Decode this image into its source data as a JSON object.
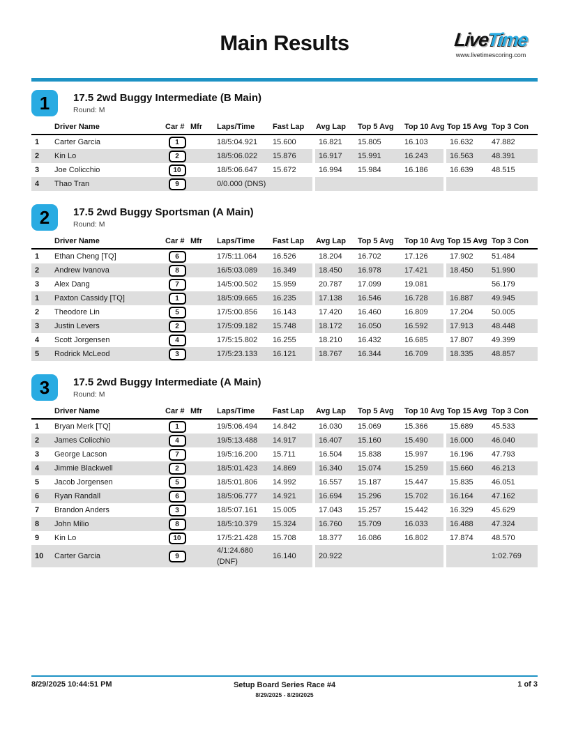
{
  "header": {
    "title": "Main Results",
    "logo": {
      "live": "Live",
      "time": "Time",
      "website": "www.livetimescoring.com"
    }
  },
  "columns": [
    "Driver Name",
    "Car #",
    "Mfr",
    "Laps/Time",
    "Fast Lap",
    "Avg Lap",
    "Top 5 Avg",
    "Top 10 Avg",
    "Top 15 Avg",
    "Top 3 Con"
  ],
  "colors": {
    "accent_badge": "#29ABE2",
    "rule": "#1D92C4",
    "row_alt": "#DEDEDE"
  },
  "sections": [
    {
      "number": "1",
      "title": "17.5 2wd Buggy Intermediate (B Main)",
      "round": "Round: M",
      "rows": [
        {
          "pos": "1",
          "driver": "Carter Garcia",
          "car": "1",
          "mfr": "",
          "laps_time": "18/5:04.921",
          "laps_time2": "",
          "fast": "15.600",
          "avg": "16.821",
          "top5": "15.805",
          "top10": "16.103",
          "top15": "16.632",
          "top3con": "47.882"
        },
        {
          "pos": "2",
          "driver": "Kin Lo",
          "car": "2",
          "mfr": "",
          "laps_time": "18/5:06.022",
          "laps_time2": "",
          "fast": "15.876",
          "avg": "16.917",
          "top5": "15.991",
          "top10": "16.243",
          "top15": "16.563",
          "top3con": "48.391"
        },
        {
          "pos": "3",
          "driver": "Joe Colicchio",
          "car": "10",
          "mfr": "",
          "laps_time": "18/5:06.647",
          "laps_time2": "",
          "fast": "15.672",
          "avg": "16.994",
          "top5": "15.984",
          "top10": "16.186",
          "top15": "16.639",
          "top3con": "48.515"
        },
        {
          "pos": "4",
          "driver": "Thao Tran",
          "car": "9",
          "mfr": "",
          "laps_time": "0/0.000 (DNS)",
          "laps_time2": "",
          "fast": "",
          "avg": "",
          "top5": "",
          "top10": "",
          "top15": "",
          "top3con": ""
        }
      ]
    },
    {
      "number": "2",
      "title": "17.5 2wd Buggy Sportsman (A Main)",
      "round": "Round: M",
      "rows": [
        {
          "pos": "1",
          "driver": "Ethan Cheng [TQ]",
          "car": "6",
          "mfr": "",
          "laps_time": "17/5:11.064",
          "laps_time2": "",
          "fast": "16.526",
          "avg": "18.204",
          "top5": "16.702",
          "top10": "17.126",
          "top15": "17.902",
          "top3con": "51.484"
        },
        {
          "pos": "2",
          "driver": "Andrew Ivanova",
          "car": "8",
          "mfr": "",
          "laps_time": "16/5:03.089",
          "laps_time2": "",
          "fast": "16.349",
          "avg": "18.450",
          "top5": "16.978",
          "top10": "17.421",
          "top15": "18.450",
          "top3con": "51.990"
        },
        {
          "pos": "3",
          "driver": "Alex Dang",
          "car": "7",
          "mfr": "",
          "laps_time": "14/5:00.502",
          "laps_time2": "",
          "fast": "15.959",
          "avg": "20.787",
          "top5": "17.099",
          "top10": "19.081",
          "top15": "",
          "top3con": "56.179"
        },
        {
          "pos": "1",
          "driver": "Paxton Cassidy [TQ]",
          "car": "1",
          "mfr": "",
          "laps_time": "18/5:09.665",
          "laps_time2": "",
          "fast": "16.235",
          "avg": "17.138",
          "top5": "16.546",
          "top10": "16.728",
          "top15": "16.887",
          "top3con": "49.945"
        },
        {
          "pos": "2",
          "driver": "Theodore Lin",
          "car": "5",
          "mfr": "",
          "laps_time": "17/5:00.856",
          "laps_time2": "",
          "fast": "16.143",
          "avg": "17.420",
          "top5": "16.460",
          "top10": "16.809",
          "top15": "17.204",
          "top3con": "50.005"
        },
        {
          "pos": "3",
          "driver": "Justin Levers",
          "car": "2",
          "mfr": "",
          "laps_time": "17/5:09.182",
          "laps_time2": "",
          "fast": "15.748",
          "avg": "18.172",
          "top5": "16.050",
          "top10": "16.592",
          "top15": "17.913",
          "top3con": "48.448"
        },
        {
          "pos": "4",
          "driver": "Scott Jorgensen",
          "car": "4",
          "mfr": "",
          "laps_time": "17/5:15.802",
          "laps_time2": "",
          "fast": "16.255",
          "avg": "18.210",
          "top5": "16.432",
          "top10": "16.685",
          "top15": "17.807",
          "top3con": "49.399"
        },
        {
          "pos": "5",
          "driver": "Rodrick McLeod",
          "car": "3",
          "mfr": "",
          "laps_time": "17/5:23.133",
          "laps_time2": "",
          "fast": "16.121",
          "avg": "18.767",
          "top5": "16.344",
          "top10": "16.709",
          "top15": "18.335",
          "top3con": "48.857"
        }
      ]
    },
    {
      "number": "3",
      "title": "17.5 2wd Buggy Intermediate (A Main)",
      "round": "Round: M",
      "rows": [
        {
          "pos": "1",
          "driver": "Bryan Merk [TQ]",
          "car": "1",
          "mfr": "",
          "laps_time": "19/5:06.494",
          "laps_time2": "",
          "fast": "14.842",
          "avg": "16.030",
          "top5": "15.069",
          "top10": "15.366",
          "top15": "15.689",
          "top3con": "45.533"
        },
        {
          "pos": "2",
          "driver": "James Colicchio",
          "car": "4",
          "mfr": "",
          "laps_time": "19/5:13.488",
          "laps_time2": "",
          "fast": "14.917",
          "avg": "16.407",
          "top5": "15.160",
          "top10": "15.490",
          "top15": "16.000",
          "top3con": "46.040"
        },
        {
          "pos": "3",
          "driver": "George Lacson",
          "car": "7",
          "mfr": "",
          "laps_time": "19/5:16.200",
          "laps_time2": "",
          "fast": "15.711",
          "avg": "16.504",
          "top5": "15.838",
          "top10": "15.997",
          "top15": "16.196",
          "top3con": "47.793"
        },
        {
          "pos": "4",
          "driver": "Jimmie Blackwell",
          "car": "2",
          "mfr": "",
          "laps_time": "18/5:01.423",
          "laps_time2": "",
          "fast": "14.869",
          "avg": "16.340",
          "top5": "15.074",
          "top10": "15.259",
          "top15": "15.660",
          "top3con": "46.213"
        },
        {
          "pos": "5",
          "driver": "Jacob Jorgensen",
          "car": "5",
          "mfr": "",
          "laps_time": "18/5:01.806",
          "laps_time2": "",
          "fast": "14.992",
          "avg": "16.557",
          "top5": "15.187",
          "top10": "15.447",
          "top15": "15.835",
          "top3con": "46.051"
        },
        {
          "pos": "6",
          "driver": "Ryan Randall",
          "car": "6",
          "mfr": "",
          "laps_time": "18/5:06.777",
          "laps_time2": "",
          "fast": "14.921",
          "avg": "16.694",
          "top5": "15.296",
          "top10": "15.702",
          "top15": "16.164",
          "top3con": "47.162"
        },
        {
          "pos": "7",
          "driver": "Brandon Anders",
          "car": "3",
          "mfr": "",
          "laps_time": "18/5:07.161",
          "laps_time2": "",
          "fast": "15.005",
          "avg": "17.043",
          "top5": "15.257",
          "top10": "15.442",
          "top15": "16.329",
          "top3con": "45.629"
        },
        {
          "pos": "8",
          "driver": "John Milio",
          "car": "8",
          "mfr": "",
          "laps_time": "18/5:10.379",
          "laps_time2": "",
          "fast": "15.324",
          "avg": "16.760",
          "top5": "15.709",
          "top10": "16.033",
          "top15": "16.488",
          "top3con": "47.324"
        },
        {
          "pos": "9",
          "driver": "Kin Lo",
          "car": "10",
          "mfr": "",
          "laps_time": "17/5:21.428",
          "laps_time2": "",
          "fast": "15.708",
          "avg": "18.377",
          "top5": "16.086",
          "top10": "16.802",
          "top15": "17.874",
          "top3con": "48.570"
        },
        {
          "pos": "10",
          "driver": "Carter Garcia",
          "car": "9",
          "mfr": "",
          "laps_time": "4/1:24.680",
          "laps_time2": "(DNF)",
          "fast": "16.140",
          "avg": "20.922",
          "top5": "",
          "top10": "",
          "top15": "",
          "top3con": "1:02.769"
        }
      ]
    }
  ],
  "footer": {
    "timestamp": "8/29/2025 10:44:51 PM",
    "series": "Setup Board Series Race #4",
    "date_range": "8/29/2025 - 8/29/2025",
    "page": "1 of 3"
  }
}
